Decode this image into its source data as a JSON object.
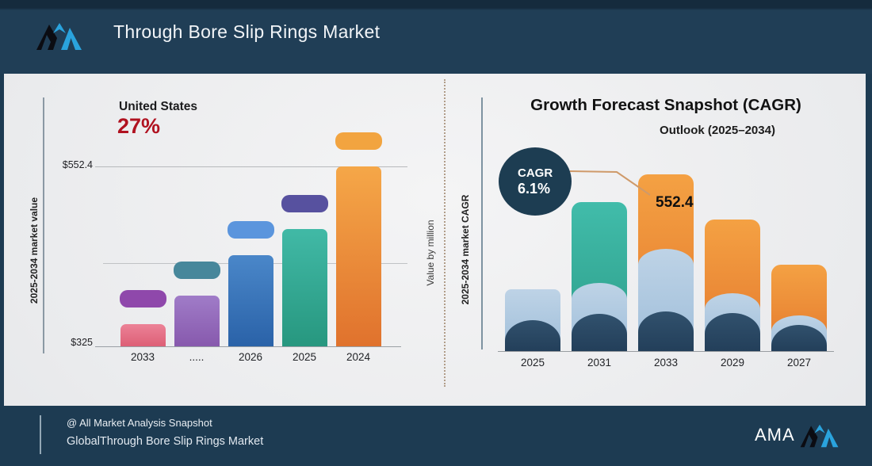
{
  "header": {
    "title": "Through Bore Slip Rings Market",
    "logo": "ama-logo"
  },
  "footer": {
    "line1": "@ All Market Analysis Snapshot",
    "line2": "GlobalThrough Bore Slip Rings Market",
    "brand": "AMA",
    "logo": "ama-logo"
  },
  "colors": {
    "header_bg": "#203e56",
    "footer_bg": "#1d3b52",
    "content_bg": "#eaebed",
    "accent_red": "#b01220",
    "bubble_bg": "#1d3d52",
    "leader_line": "#cf9a6a",
    "divider_dots": "#b19d89"
  },
  "chart_data": [
    {
      "id": "us-market-value",
      "type": "bar",
      "title": "United States",
      "highlight": "27%",
      "ylabel": "2025-2034 market value",
      "ylabel_right": "Value by million",
      "ytick_labels": [
        "$552.4",
        "$325"
      ],
      "ymin": 325,
      "yref": 552.4,
      "grid": true,
      "categories": [
        "2033",
        ".....",
        "2026",
        "2025",
        "2024"
      ],
      "values": [
        353,
        389,
        440,
        473,
        552.4
      ],
      "bar_colors": [
        [
          "#ec8297",
          "#dd5f76"
        ],
        [
          "#a07cc8",
          "#8759ad"
        ],
        [
          "#4a87c9",
          "#2a62a8"
        ],
        [
          "#41b9a6",
          "#27977f"
        ],
        [
          "#f5a748",
          "#e0722d"
        ]
      ],
      "cap_colors": [
        "#8f48ab",
        "#47879b",
        "#5b95dd",
        "#57519f",
        "#f2a440"
      ]
    },
    {
      "id": "growth-forecast-cagr",
      "type": "stacked-bar",
      "title": "Growth Forecast Snapshot (CAGR)",
      "subtitle": "Outlook (2025–2034)",
      "ylabel": "2025-2034 market CAGR",
      "categories": [
        "2025",
        "2031",
        "2033",
        "2029",
        "2027"
      ],
      "annotation": {
        "label": "CAGR",
        "value": "6.1%"
      },
      "data_label": {
        "category": "2033",
        "text": "552.4"
      },
      "stacks": [
        {
          "category": "2025",
          "base": 39,
          "mid": 78,
          "total": 78,
          "top_colors": null
        },
        {
          "category": "2031",
          "base": 47,
          "mid": 86,
          "total": 188,
          "top_colors": [
            "#41bcaa",
            "#2d9d89"
          ]
        },
        {
          "category": "2033",
          "base": 50,
          "mid": 129,
          "total": 223,
          "top_colors": [
            "#f4a143",
            "#e4792e"
          ]
        },
        {
          "category": "2029",
          "base": 48,
          "mid": 73,
          "total": 166,
          "top_colors": [
            "#f4a143",
            "#e4792e"
          ]
        },
        {
          "category": "2027",
          "base": 33,
          "mid": 45,
          "total": 109,
          "top_colors": [
            "#f4a143",
            "#e4792e"
          ]
        }
      ]
    }
  ]
}
